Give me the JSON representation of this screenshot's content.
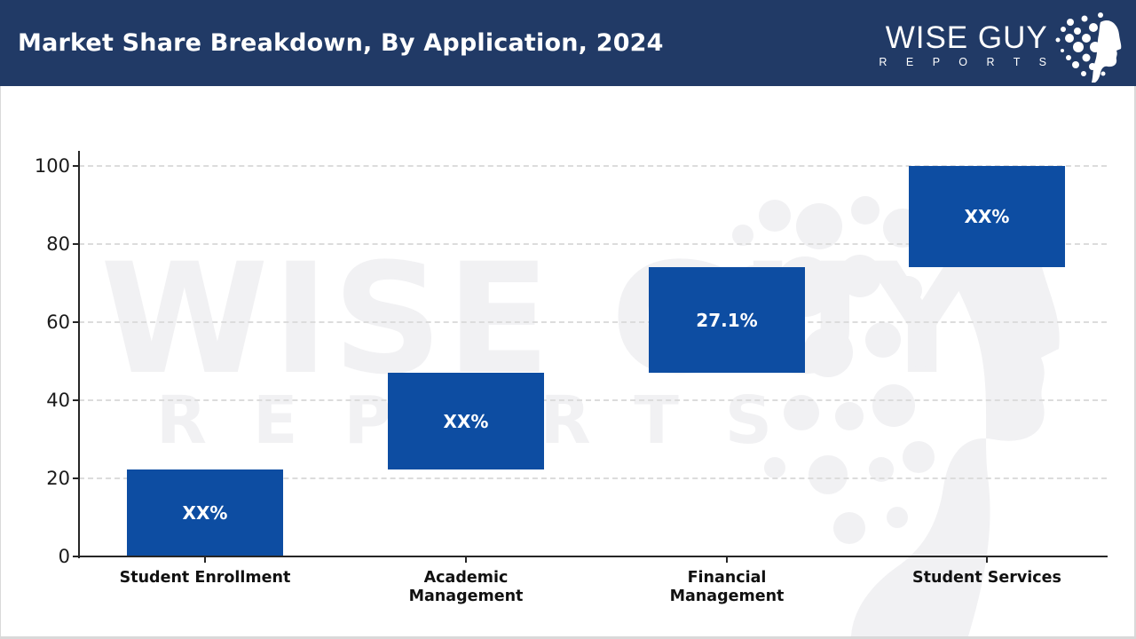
{
  "header": {
    "title": "Market Share Breakdown, By Application, 2024",
    "brand": {
      "name": "WISE GUY",
      "subtitle": "R E P O R T S"
    }
  },
  "chart_data": {
    "type": "bar",
    "subtype": "waterfall",
    "title": "Market Share Breakdown, By Application, 2024",
    "categories": [
      [
        "Student Enrollment"
      ],
      [
        "Academic",
        "Management"
      ],
      [
        "Financial",
        "Management"
      ],
      [
        "Student Services"
      ]
    ],
    "bars": [
      {
        "category": "Student Enrollment",
        "start": 0,
        "end": 22.2,
        "label": "XX%"
      },
      {
        "category": "Academic Management",
        "start": 22.2,
        "end": 47.0,
        "label": "XX%"
      },
      {
        "category": "Financial Management",
        "start": 47.0,
        "end": 74.1,
        "label": "27.1%",
        "value": 27.1
      },
      {
        "category": "Student Services",
        "start": 74.1,
        "end": 100,
        "label": "XX%"
      }
    ],
    "yticks": [
      0,
      20,
      40,
      60,
      80,
      100
    ],
    "ylim": [
      0,
      100
    ],
    "grid": "horizontal-dashed",
    "legend": "none",
    "bar_color": "#0d4da2",
    "bar_label_color": "#ffffff"
  },
  "watermark": {
    "line1": "WISE GUY",
    "line2": "R  E  P  O  R  T  S"
  },
  "colors": {
    "header_bg": "#213a66",
    "header_text": "#ffffff",
    "axis": "#262626",
    "grid": "#dcdcdc",
    "watermark": "#f1f1f3",
    "bar": "#0d4da2"
  }
}
